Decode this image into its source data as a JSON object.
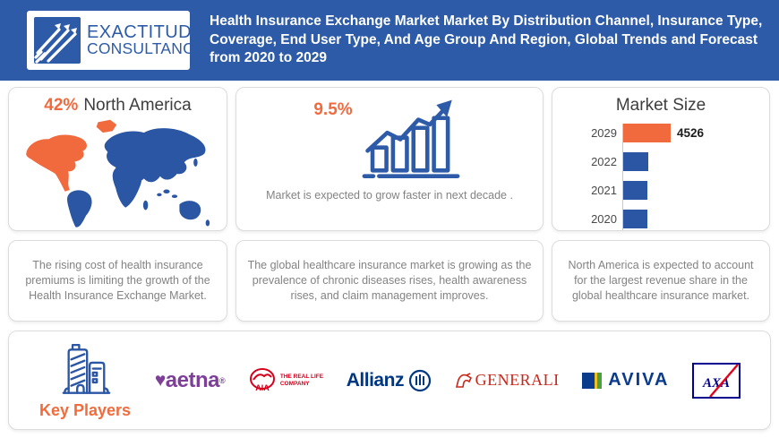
{
  "header": {
    "logo_line1": "EXACTITUDE",
    "logo_line2": "CONSULTANCY",
    "title": "Health Insurance Exchange Market Market By Distribution Channel, Insurance Type, Coverage, End User Type, And Age Group And Region, Global Trends and Forecast from 2020 to 2029"
  },
  "cards": {
    "region": {
      "percent": "42%",
      "label": "North America"
    },
    "growth": {
      "percent": "9.5%",
      "caption": "Market is expected to grow faster in next decade ."
    },
    "market_size": {
      "title": "Market Size"
    }
  },
  "chart_data": {
    "type": "bar",
    "orientation": "horizontal",
    "title": "Market Size",
    "categories": [
      "2029",
      "2022",
      "2021",
      "2020"
    ],
    "values": [
      4526,
      2350,
      2320,
      2290
    ],
    "data_labels": [
      "4526",
      "",
      "",
      ""
    ],
    "bar_colors": [
      "#f16a3d",
      "#2b56a4",
      "#2b56a4",
      "#2b56a4"
    ],
    "xlim": [
      0,
      4526
    ],
    "legend": "none",
    "grid": "off",
    "note": "Only 2029 carries a printed data label (4526); 2020-2022 bar lengths estimated from pixels"
  },
  "insights": [
    "The rising cost of health insurance premiums is limiting the growth of the Health Insurance Exchange Market.",
    "The global healthcare insurance market is growing as the prevalence of chronic diseases rises, health awareness rises, and claim management improves.",
    "North America is expected to account for the largest revenue share in the global healthcare insurance market."
  ],
  "key_players": {
    "label": "Key Players",
    "companies": [
      "aetna",
      "AIA",
      "Allianz",
      "GENERALI",
      "AVIVA",
      "AXA"
    ],
    "logos": {
      "aetna": {
        "heart": "♥",
        "text": "aetna",
        "reg": "®",
        "color": "#7d3f98"
      },
      "aia": {
        "emblem_text": "AIA",
        "tagline_line1": "THE REAL LIFE",
        "tagline_line2": "COMPANY",
        "color": "#d6001c"
      },
      "allianz": {
        "text": "Allianz",
        "color": "#003781"
      },
      "generali": {
        "text": "GENERALI",
        "color": "#c5281c"
      },
      "aviva": {
        "text": "AVIVA",
        "color": "#0a3b8c"
      },
      "axa": {
        "text": "AXA",
        "color": "#00008f",
        "slash_color": "#e2001a"
      }
    }
  },
  "colors": {
    "header_blue": "#2d5ba8",
    "map_blue": "#2b56a4",
    "accent_orange": "#f16a3d",
    "body_text_gray": "#838383"
  },
  "icons": {
    "logo_mark": "arrows-up-right-icon",
    "growth": "bar-chart-rising-arrow-icon",
    "key_players": "office-buildings-icon"
  }
}
